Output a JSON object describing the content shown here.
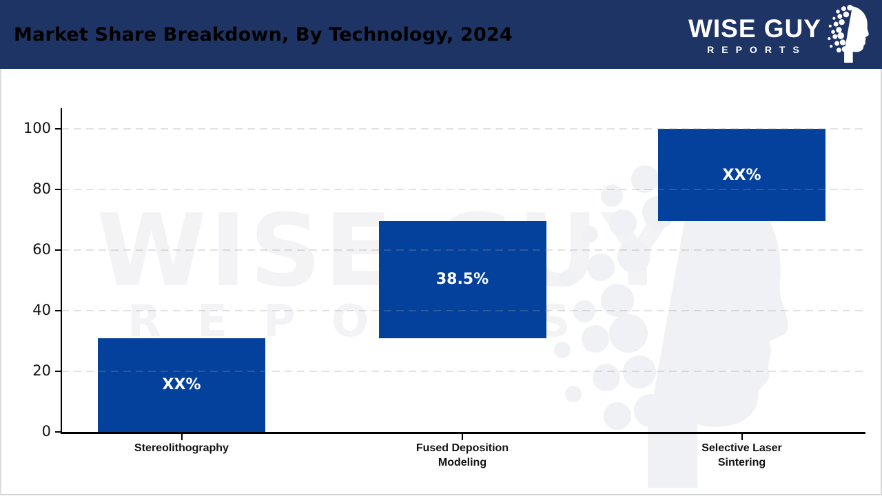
{
  "header": {
    "title": "Market Share Breakdown, By Technology, 2024",
    "logo": {
      "line1": "WISE GUY",
      "line2": "REPORTS"
    }
  },
  "watermark": {
    "line1": "WISE GUY",
    "line2": "REPORTS"
  },
  "colors": {
    "header_bg": "#1e3464",
    "bar": "#04419c",
    "bar_label_text": "#ffffff",
    "title_text": "#ffffff",
    "axis": "#000000",
    "tick_text": "#111111",
    "gridline": "#dcdcdc",
    "watermark": "#f3f3f5",
    "background": "#ffffff"
  },
  "chart_data": {
    "type": "bar",
    "subtype": "waterfall",
    "title": "Market Share Breakdown, By Technology, 2024",
    "categories": [
      "Stereolithography",
      "Fused Deposition Modeling",
      "Selective Laser Sintering"
    ],
    "category_lines": [
      [
        "Stereolithography"
      ],
      [
        "Fused Deposition",
        "Modeling"
      ],
      [
        "Selective Laser",
        "Sintering"
      ]
    ],
    "segments": [
      {
        "category": "Stereolithography",
        "start": 0,
        "end": 31,
        "label": "XX%"
      },
      {
        "category": "Fused Deposition Modeling",
        "start": 31,
        "end": 69.5,
        "label": "38.5%"
      },
      {
        "category": "Selective Laser Sintering",
        "start": 69.5,
        "end": 100,
        "label": "XX%"
      }
    ],
    "y_ticks": [
      0,
      20,
      40,
      60,
      80,
      100
    ],
    "ylim": [
      0,
      100
    ],
    "xlabel": "",
    "ylabel": "",
    "grid": "horizontal-dashed",
    "legend": "none"
  }
}
